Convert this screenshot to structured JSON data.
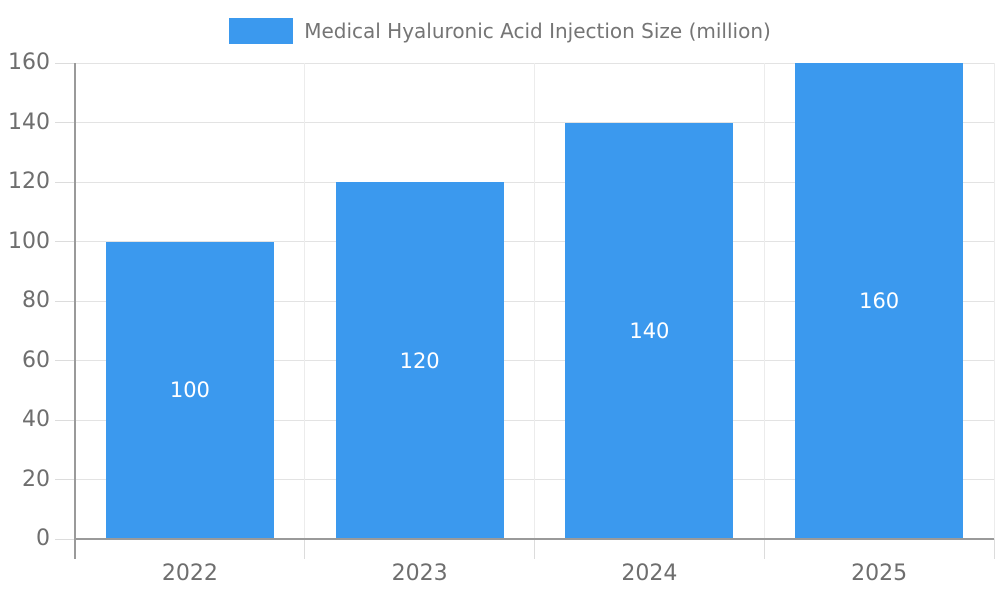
{
  "legend": {
    "label": "Medical Hyaluronic Acid Injection Size (million)"
  },
  "chart_data": {
    "type": "bar",
    "title": "Medical Hyaluronic Acid Injection Size (million)",
    "categories": [
      "2022",
      "2023",
      "2024",
      "2025"
    ],
    "values": [
      100,
      120,
      140,
      160
    ],
    "bar_labels": [
      "100",
      "120",
      "140",
      "160"
    ],
    "xlabel": "",
    "ylabel": "",
    "ylim": [
      0,
      160
    ],
    "ytick_step": 20,
    "yticks": [
      0,
      20,
      40,
      60,
      80,
      100,
      120,
      140,
      160
    ],
    "grid": true,
    "legend_position": "top",
    "colors": {
      "bar": "#3B99EE",
      "grid_horizontal": "#E3E3E3",
      "grid_vertical": "#ECECEC",
      "tick": "#DCDCDC",
      "axis_line": "#9A9A9A",
      "axis_text": "#6E6E6E",
      "legend_text": "#757575",
      "bar_label": "#FFFFFF",
      "background": "#FFFFFF"
    }
  }
}
